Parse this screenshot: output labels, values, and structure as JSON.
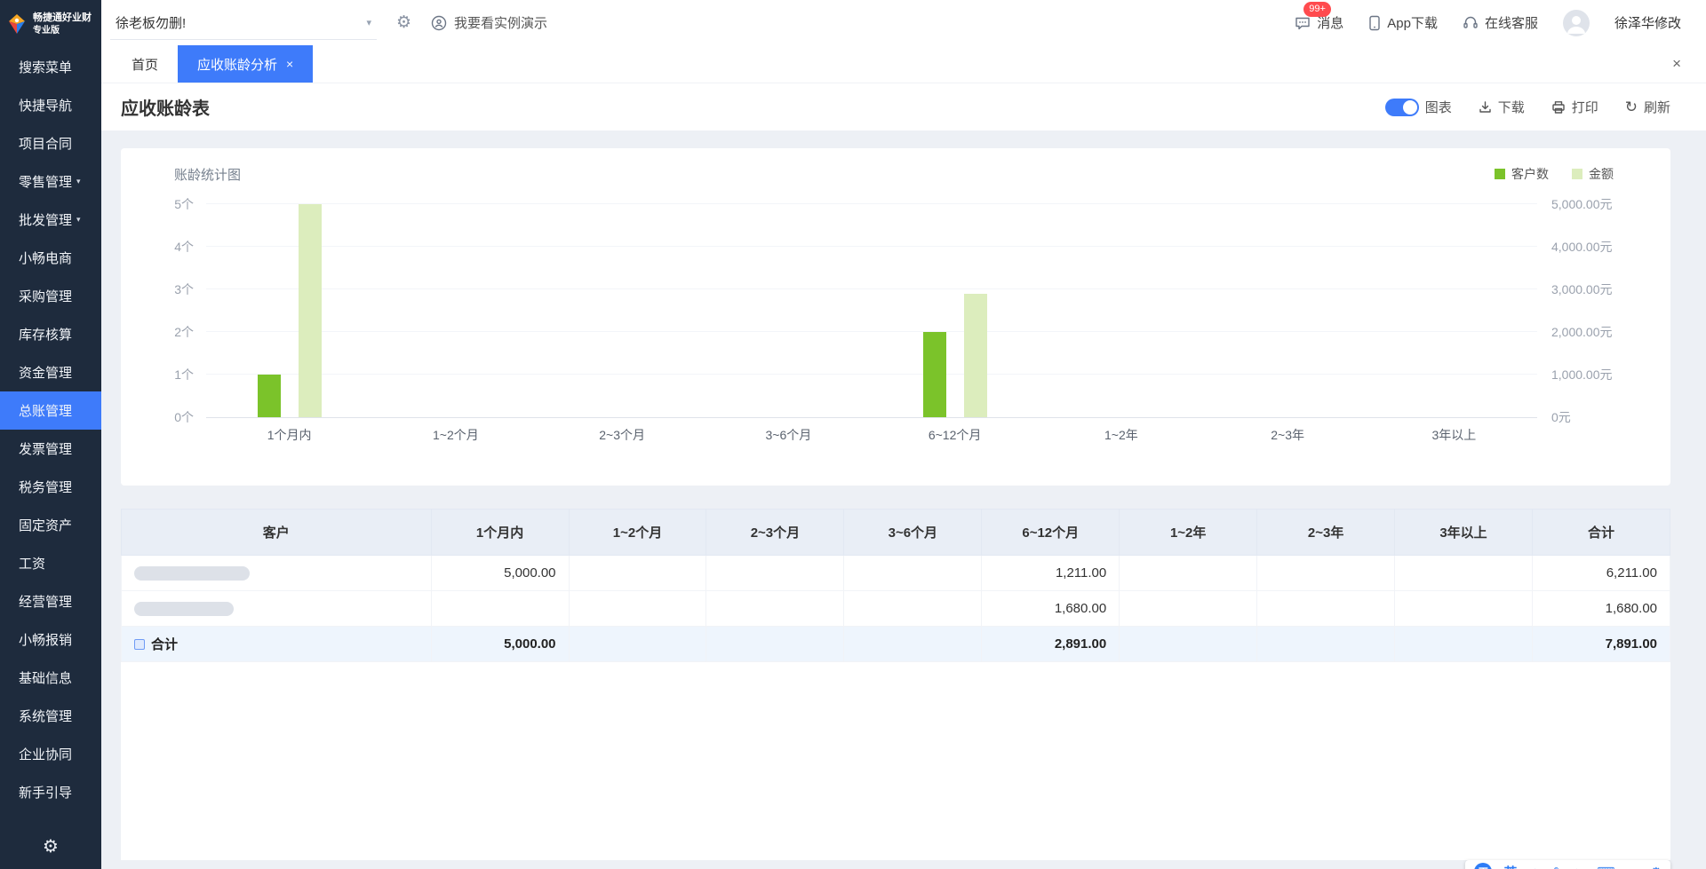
{
  "sidebar": {
    "logo_title": "畅捷通好业财",
    "logo_subtitle": "专业版",
    "items": [
      {
        "label": "搜索菜单"
      },
      {
        "label": "快捷导航"
      },
      {
        "label": "项目合同"
      },
      {
        "label": "零售管理",
        "has_submenu": true
      },
      {
        "label": "批发管理",
        "has_submenu": true
      },
      {
        "label": "小畅电商"
      },
      {
        "label": "采购管理"
      },
      {
        "label": "库存核算"
      },
      {
        "label": "资金管理"
      },
      {
        "label": "总账管理",
        "active": true
      },
      {
        "label": "发票管理"
      },
      {
        "label": "税务管理"
      },
      {
        "label": "固定资产"
      },
      {
        "label": "工资"
      },
      {
        "label": "经营管理"
      },
      {
        "label": "小畅报销"
      },
      {
        "label": "基础信息"
      },
      {
        "label": "系统管理"
      },
      {
        "label": "企业协同"
      },
      {
        "label": "新手引导"
      }
    ]
  },
  "topbar": {
    "company_select": {
      "value": "徐老板勿删!"
    },
    "demo": {
      "label": "我要看实例演示"
    },
    "messages": {
      "label": "消息",
      "badge": "99+"
    },
    "app_download": {
      "label": "App下载"
    },
    "support": {
      "label": "在线客服"
    },
    "user": {
      "name": "徐泽华修改"
    }
  },
  "tabs": {
    "items": [
      {
        "label": "首页",
        "active": false,
        "closable": false
      },
      {
        "label": "应收账龄分析",
        "active": true,
        "closable": true
      }
    ]
  },
  "page": {
    "title": "应收账龄表",
    "chart_toggle_label": "图表",
    "download_label": "下载",
    "print_label": "打印",
    "refresh_label": "刷新"
  },
  "chart_data": {
    "type": "bar",
    "title": "账龄统计图",
    "categories": [
      "1个月内",
      "1~2个月",
      "2~3个月",
      "3~6个月",
      "6~12个月",
      "1~2年",
      "2~3年",
      "3年以上"
    ],
    "series": [
      {
        "name": "客户数",
        "axis": "left",
        "color": "#7bc32a",
        "values": [
          1,
          0,
          0,
          0,
          2,
          0,
          0,
          0
        ]
      },
      {
        "name": "金额",
        "axis": "right",
        "color": "#dcedbd",
        "values": [
          5000,
          0,
          0,
          0,
          2891,
          0,
          0,
          0
        ]
      }
    ],
    "left_axis": {
      "max": 5,
      "ticks": [
        "0个",
        "1个",
        "2个",
        "3个",
        "4个",
        "5个"
      ]
    },
    "right_axis": {
      "max": 5000,
      "ticks": [
        "0元",
        "1,000.00元",
        "2,000.00元",
        "3,000.00元",
        "4,000.00元",
        "5,000.00元"
      ]
    },
    "legend_position": "top-right",
    "grid": "faint-horizontal"
  },
  "table": {
    "headers": [
      "客户",
      "1个月内",
      "1~2个月",
      "2~3个月",
      "3~6个月",
      "6~12个月",
      "1~2年",
      "2~3年",
      "3年以上",
      "合计"
    ],
    "rows": [
      {
        "customer_redacted": true,
        "values": [
          "5,000.00",
          "",
          "",
          "",
          "1,211.00",
          "",
          "",
          "",
          "6,211.00"
        ]
      },
      {
        "customer_redacted": true,
        "values": [
          "",
          "",
          "",
          "",
          "1,680.00",
          "",
          "",
          "",
          "1,680.00"
        ]
      }
    ],
    "total_row": {
      "label": "合计",
      "values": [
        "5,000.00",
        "",
        "",
        "",
        "2,891.00",
        "",
        "",
        "",
        "7,891.00"
      ]
    }
  },
  "ime": {
    "logo_text": "王",
    "mode": "英",
    "icons": [
      {
        "name": "emoji-icon",
        "glyph": "☺"
      },
      {
        "name": "handwriting-pen-icon",
        "glyph": "✎"
      },
      {
        "name": "scissors-icon",
        "glyph": "✂"
      },
      {
        "name": "virtual-keyboard-icon",
        "glyph": "⌨"
      },
      {
        "name": "cloud-icon",
        "glyph": "☁"
      },
      {
        "name": "settings-wrench-icon",
        "glyph": "⚙"
      }
    ]
  },
  "icons": {
    "gear": "⚙",
    "chevron_down": "▾",
    "submenu_arrow": "▾",
    "close": "×",
    "refresh": "↻"
  },
  "colors": {
    "accent_blue": "#3e7bfa",
    "sidebar_bg": "#1e2b3d",
    "count_green": "#7bc32a",
    "amount_green": "#dcedbd",
    "badge_red": "#ff4b4e"
  }
}
